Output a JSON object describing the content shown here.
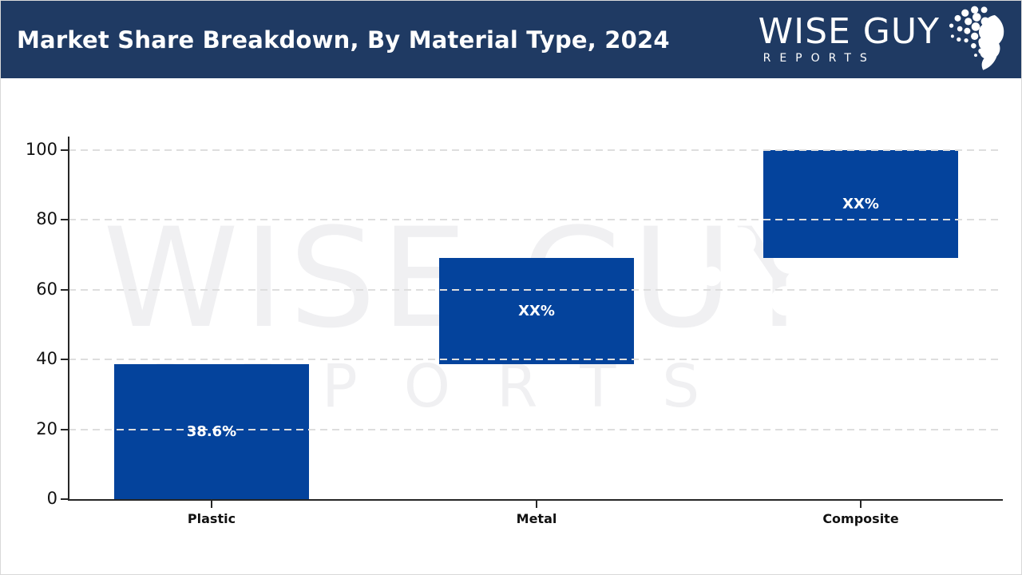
{
  "header": {
    "title": "Market Share Breakdown, By Material Type, 2024",
    "logo": {
      "line1": "WISE GUY",
      "line2": "REPORTS"
    }
  },
  "watermark": {
    "line1": "WISE GUY",
    "line2": "REPORTS"
  },
  "colors": {
    "header_bg": "#1f3a63",
    "bar": "#04439c",
    "grid": "#dedede",
    "axis": "#262626",
    "watermark": "#f0f0f2",
    "bar_label_text": "#ffffff"
  },
  "chart_data": {
    "type": "bar",
    "subtype": "waterfall-stacked-segments",
    "title": "Market Share Breakdown, By Material Type, 2024",
    "categories": [
      "Plastic",
      "Metal",
      "Composite"
    ],
    "segments": [
      {
        "category": "Plastic",
        "start": 0,
        "end": 38.6,
        "label": "38.6%"
      },
      {
        "category": "Metal",
        "start": 38.6,
        "end": 69,
        "label": "XX%"
      },
      {
        "category": "Composite",
        "start": 69,
        "end": 100,
        "label": "XX%"
      }
    ],
    "yticks": [
      0,
      20,
      40,
      60,
      80,
      100
    ],
    "ylim": [
      0,
      100
    ],
    "xlabel": "",
    "ylabel": "",
    "grid": "horizontal-dashed",
    "legend": "none",
    "bar_color": "#04439c"
  }
}
